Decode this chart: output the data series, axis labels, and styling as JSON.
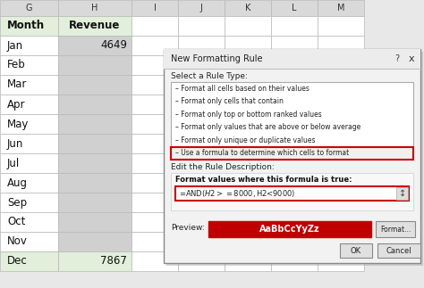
{
  "bg_color": "#e8e8e8",
  "col_g_header": "G",
  "col_h_header": "H",
  "col_i_header": "I",
  "col_j_header": "J",
  "col_k_header": "K",
  "col_l_header": "L",
  "col_m_header": "M",
  "col_h_fill": "#e2efda",
  "col_h_gray": "#d0d0d0",
  "months": [
    "Month",
    "Jan",
    "Feb",
    "Mar",
    "Apr",
    "May",
    "Jun",
    "Jul",
    "Aug",
    "Sep",
    "Oct",
    "Nov",
    "Dec"
  ],
  "revenue": [
    "Revenue",
    "4649",
    "",
    "",
    "",
    "",
    "",
    "",
    "",
    "",
    "",
    "",
    "7867"
  ],
  "dialog_title": "New Formatting Rule",
  "dialog_bg": "#f2f2f2",
  "rule_types": [
    "– Format all cells based on their values",
    "– Format only cells that contain",
    "– Format only top or bottom ranked values",
    "– Format only values that are above or below average",
    "– Format only unique or duplicate values",
    "– Use a formula to determine which cells to format"
  ],
  "red_border": "#cc0000",
  "formula_label": "Format values where this formula is true:",
  "formula_text": "=AND($H2>=8000,$H2<9000)",
  "preview_label": "Preview:",
  "preview_text": "AaBbCcYyZz",
  "preview_bg": "#c00000",
  "preview_text_color": "#ffffff",
  "format_btn": "Format...",
  "ok_btn": "OK",
  "cancel_btn": "Cancel",
  "grid_color": "#b8b8b8",
  "col_header_bg": "#d9d9d9",
  "white": "#ffffff",
  "sheet_bg": "#ffffff"
}
